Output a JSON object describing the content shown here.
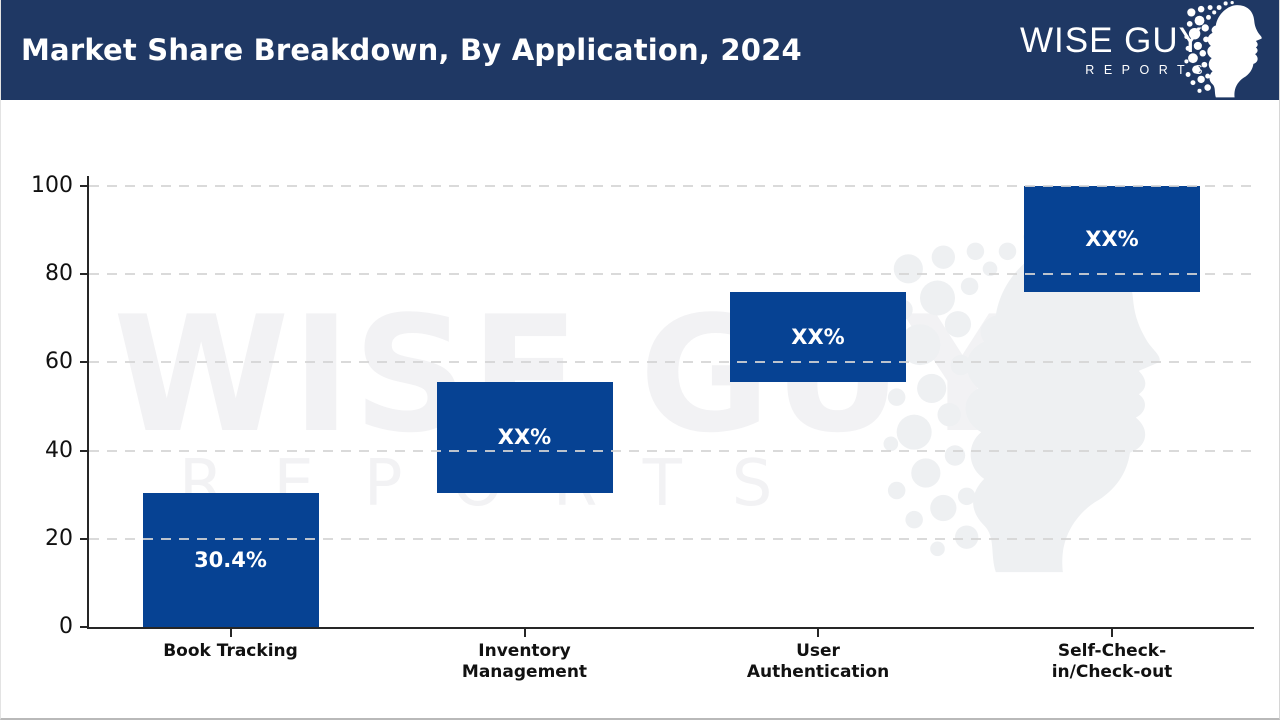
{
  "header": {
    "title": "Market Share Breakdown, By Application, 2024",
    "brand": {
      "name": "WISE GUY",
      "subtitle": "REPORTS"
    }
  },
  "watermark": {
    "name": "WISE GUY",
    "subtitle": "REPORTS"
  },
  "chart_data": {
    "type": "bar",
    "subtype": "waterfall",
    "title": "Market Share Breakdown, By Application, 2024",
    "xlabel": "",
    "ylabel": "",
    "categories": [
      "Book Tracking",
      "Inventory Management",
      "User Authentication",
      "Self-Check-in/Check-out"
    ],
    "categories_display": [
      [
        "Book Tracking"
      ],
      [
        "Inventory",
        "Management"
      ],
      [
        "User",
        "Authentication"
      ],
      [
        "Self-Check-",
        "in/Check-out"
      ]
    ],
    "segments": [
      {
        "category": "Book Tracking",
        "start": 0,
        "end": 30.4,
        "label": "30.4%"
      },
      {
        "category": "Inventory Management",
        "start": 30.4,
        "end": 55.6,
        "label": "XX%"
      },
      {
        "category": "User Authentication",
        "start": 55.6,
        "end": 76.0,
        "label": "XX%"
      },
      {
        "category": "Self-Check-in/Check-out",
        "start": 76.0,
        "end": 100.0,
        "label": "XX%"
      }
    ],
    "y_ticks": [
      0,
      20,
      40,
      60,
      80,
      100
    ],
    "ylim": [
      0,
      102
    ],
    "grid": "dashed-horizontal",
    "legend": "none",
    "colors": {
      "bar": "#064293",
      "header_bg": "#1f3864",
      "gridline": "#d5d5d5",
      "spine": "#262626",
      "bar_label_text": "#ffffff",
      "axis_text": "#111111"
    }
  }
}
